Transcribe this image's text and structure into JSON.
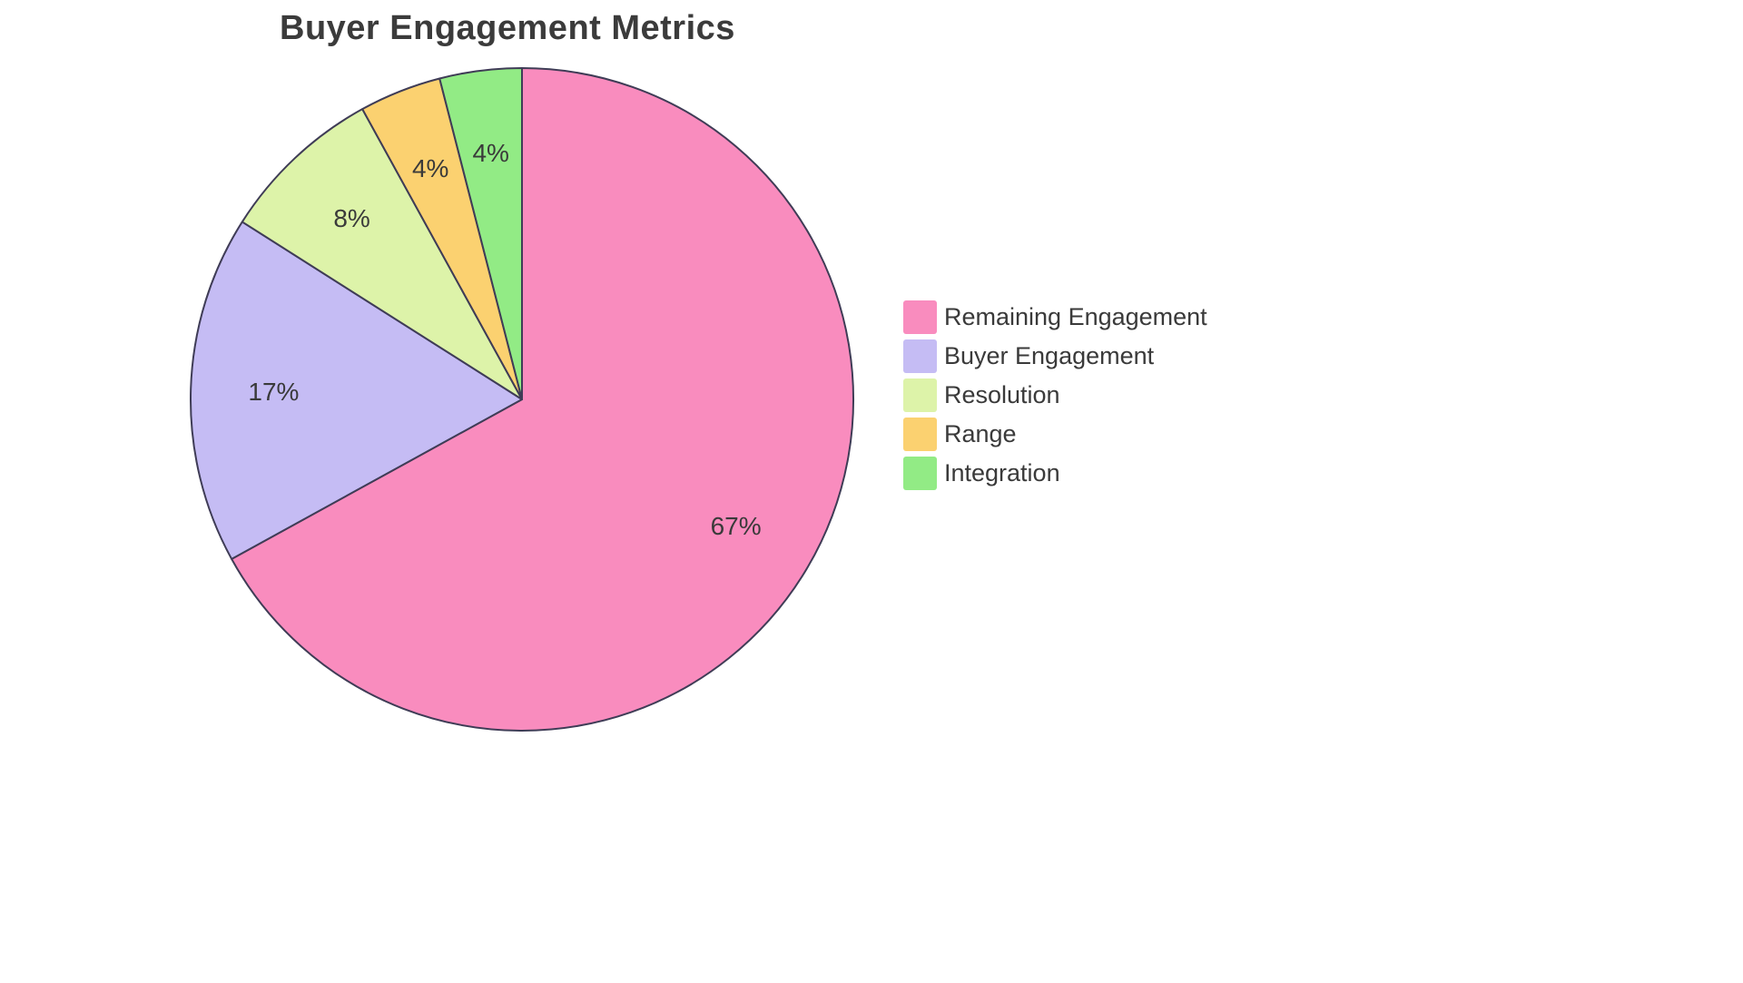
{
  "title": "Buyer Engagement Metrics",
  "chart_data": {
    "type": "pie",
    "title": "Buyer Engagement Metrics",
    "series": [
      {
        "label": "Remaining Engagement",
        "value": 67,
        "percent_label": "67%",
        "color": "#F98CBE"
      },
      {
        "label": "Buyer Engagement",
        "value": 17,
        "percent_label": "17%",
        "color": "#C5BCF4"
      },
      {
        "label": "Resolution",
        "value": 8,
        "percent_label": "8%",
        "color": "#DDF3A9"
      },
      {
        "label": "Range",
        "value": 4,
        "percent_label": "4%",
        "color": "#FBD170"
      },
      {
        "label": "Integration",
        "value": 4,
        "percent_label": "4%",
        "color": "#92EB85"
      }
    ],
    "start_angle_deg": 0,
    "direction": "clockwise",
    "legend_position": "right",
    "stroke_color": "#3F3C56",
    "label_color": "#3A3A3A",
    "title_color": "#3B3B3B",
    "background": "#FFFFFF"
  }
}
